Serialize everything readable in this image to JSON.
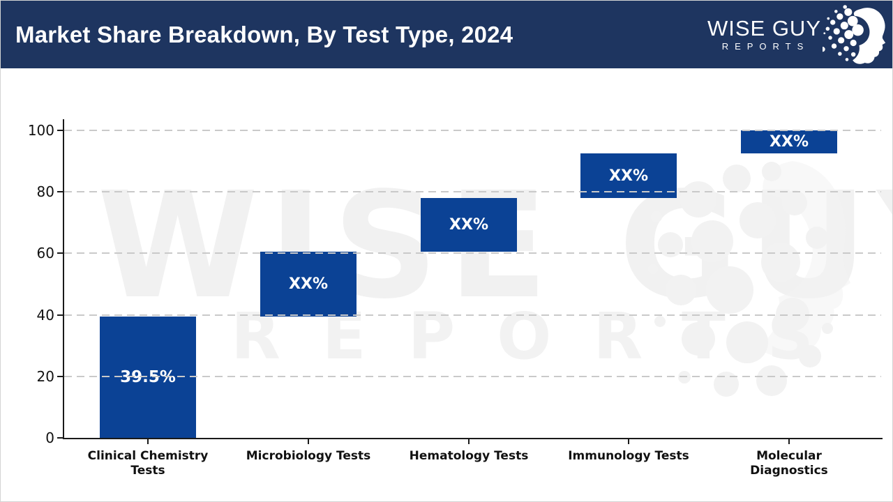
{
  "header": {
    "title": "Market Share Breakdown, By Test Type, 2024",
    "brand": {
      "name": "WISE GUY",
      "sub": "REPORTS"
    },
    "bg_color": "#1e3560"
  },
  "watermark": {
    "line1": "WISE GUY",
    "line2": "REPORTS"
  },
  "chart_data": {
    "type": "bar",
    "subtype": "waterfall",
    "title": "Market Share Breakdown, By Test Type, 2024",
    "unit": "%",
    "categories": [
      "Clinical Chemistry Tests",
      "Microbiology Tests",
      "Hematology Tests",
      "Immunology Tests",
      "Molecular Diagnostics"
    ],
    "segments": [
      {
        "category": "Clinical Chemistry Tests",
        "start": 0,
        "end": 39.5,
        "label": "39.5%"
      },
      {
        "category": "Microbiology Tests",
        "start": 39.5,
        "end": 60.5,
        "label": "XX%"
      },
      {
        "category": "Hematology Tests",
        "start": 60.5,
        "end": 78,
        "label": "XX%"
      },
      {
        "category": "Immunology Tests",
        "start": 78,
        "end": 92.5,
        "label": "XX%"
      },
      {
        "category": "Molecular Diagnostics",
        "start": 92.5,
        "end": 100,
        "label": "XX%"
      }
    ],
    "ylim": [
      0,
      100
    ],
    "yticks": [
      0,
      20,
      40,
      60,
      80,
      100
    ],
    "grid": "horizontal-dashed-above-bars",
    "legend": "none",
    "bar_color": "#0b4295",
    "bar_label_color": "#ffffff",
    "axis_color": "#1a1a1a",
    "grid_color": "#c9c9c9"
  }
}
